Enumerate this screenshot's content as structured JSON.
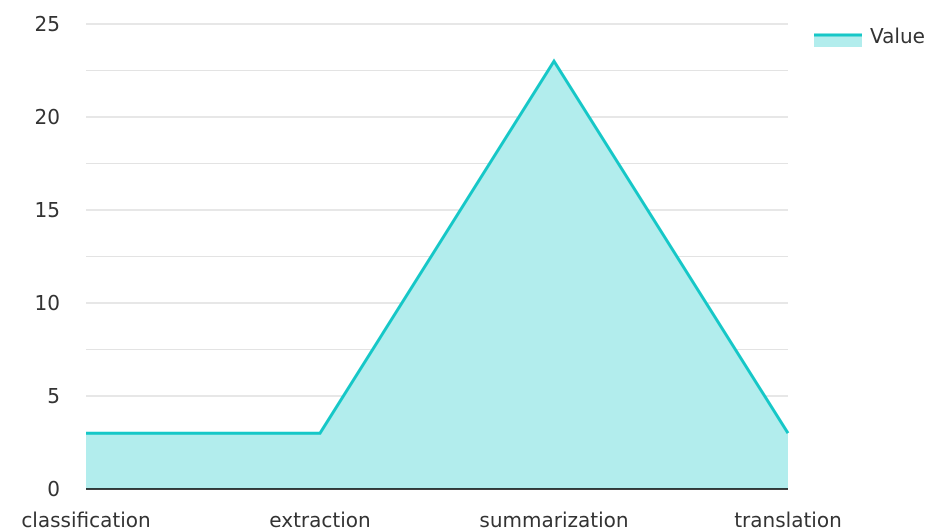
{
  "chart_data": {
    "type": "area",
    "title": "",
    "xlabel": "",
    "ylabel": "",
    "categories": [
      "classification",
      "extraction",
      "summarization",
      "translation"
    ],
    "series": [
      {
        "name": "Value",
        "values": [
          3,
          3,
          23,
          3
        ]
      }
    ],
    "ylim": [
      0,
      25
    ],
    "yticks": [
      0,
      5,
      10,
      15,
      20,
      25
    ],
    "grid": true,
    "legend": "top-right",
    "colors": {
      "line": "#16c7c7",
      "fill": "#b2eded",
      "grid_major": "#cfcfcf",
      "grid_minor": "#e3e3e3",
      "axis": "#000000",
      "text": "#333333"
    }
  }
}
